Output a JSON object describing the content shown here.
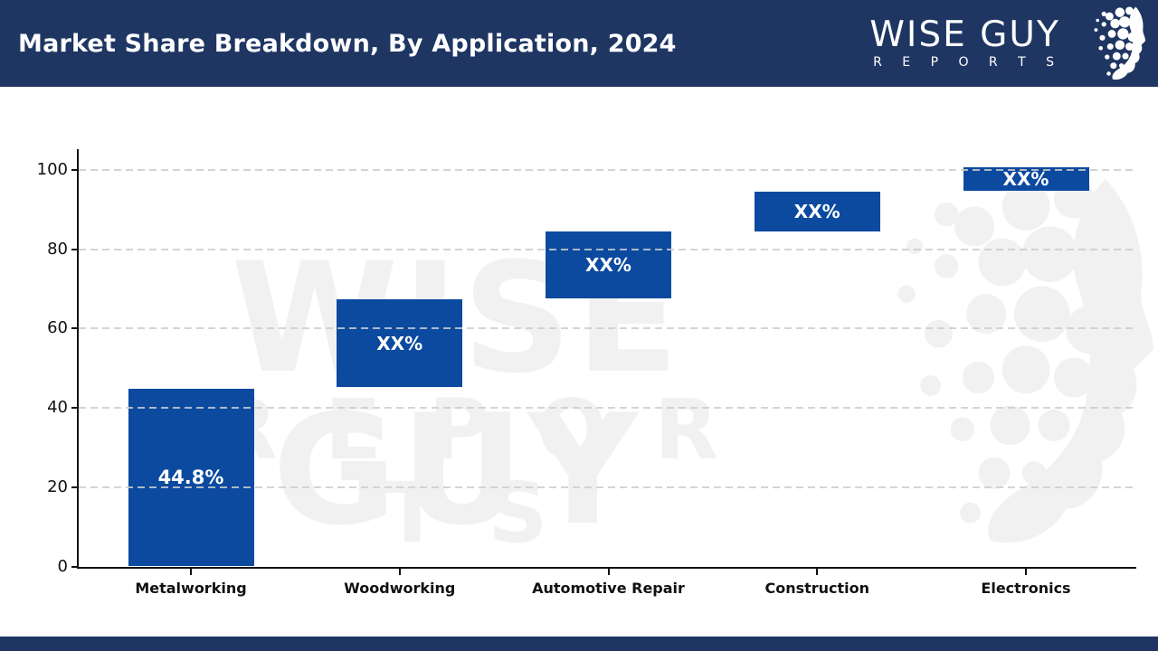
{
  "header": {
    "title": "Market Share Breakdown, By Application, 2024",
    "logo": {
      "brand": "WISE GUY",
      "sub": "R E P O R T S"
    }
  },
  "watermark": {
    "brand": "WISE GUY",
    "sub": "R E P O R T S"
  },
  "chart_data": {
    "type": "bar",
    "variant": "waterfall",
    "title": "Market Share Breakdown, By Application, 2024",
    "categories": [
      "Metalworking",
      "Woodworking",
      "Automotive Repair",
      "Construction",
      "Electronics"
    ],
    "segments": [
      {
        "category": "Metalworking",
        "start": 0,
        "end": 44.8,
        "label": "44.8%"
      },
      {
        "category": "Woodworking",
        "start": 45.2,
        "end": 67.3,
        "label": "XX%"
      },
      {
        "category": "Automotive Repair",
        "start": 67.5,
        "end": 84.5,
        "label": "XX%"
      },
      {
        "category": "Construction",
        "start": 84.5,
        "end": 94.5,
        "label": "XX%"
      },
      {
        "category": "Electronics",
        "start": 94.7,
        "end": 100.6,
        "label": "XX%"
      }
    ],
    "xlabel": "",
    "ylabel": "",
    "ylim": [
      0,
      105
    ],
    "yticks": [
      0,
      20,
      40,
      60,
      80,
      100
    ],
    "grid": "horizontal dashed lines, drawn above bars",
    "legend": "none",
    "bar_color": "#0b4a9f",
    "bar_label_color": "#ffffff"
  },
  "colors": {
    "header_bg": "#1f3663",
    "footer_bg": "#1f3663",
    "bar": "#0b4a9f",
    "grid": "#cccccc",
    "axis": "#111111",
    "watermark": "#f1f1f2"
  }
}
